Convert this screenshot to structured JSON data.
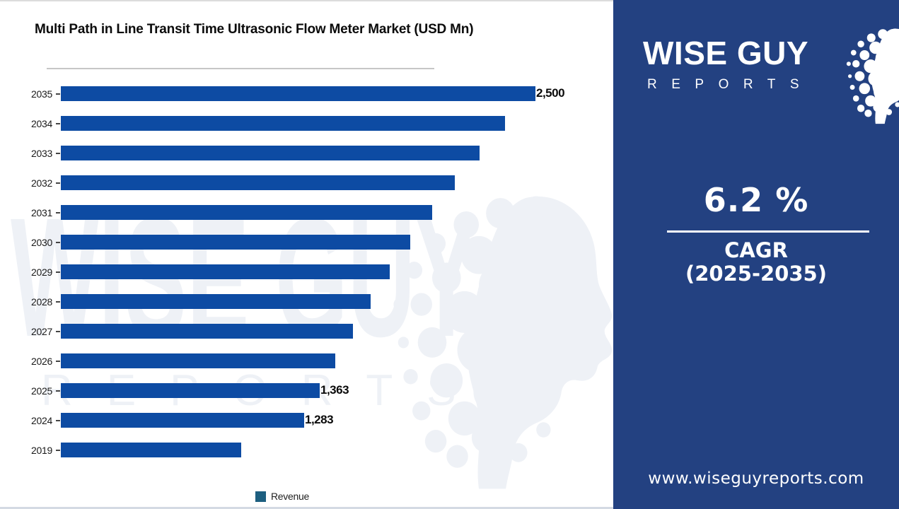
{
  "chart_data": {
    "type": "bar",
    "orientation": "horizontal",
    "title": "Multi Path in Line Transit Time Ultrasonic Flow Meter Market (USD Mn)",
    "xlabel": "",
    "ylabel": "",
    "xlim": [
      0,
      2500
    ],
    "grid": false,
    "legend_position": "bottom-center",
    "categories": [
      "2035",
      "2034",
      "2033",
      "2032",
      "2031",
      "2030",
      "2029",
      "2028",
      "2027",
      "2026",
      "2025",
      "2024",
      "2019"
    ],
    "series": [
      {
        "name": "Revenue",
        "values": [
          2500,
          2341,
          2204,
          2076,
          1955,
          1841,
          1733,
          1632,
          1537,
          1447,
          1363,
          1283,
          950
        ]
      }
    ],
    "data_labels": [
      "2,500",
      "",
      "",
      "",
      "",
      "",
      "",
      "",
      "",
      "",
      "1,363",
      "1,283",
      ""
    ]
  },
  "watermark": {
    "line1": "WISE GUY",
    "line2": "REPORTS"
  },
  "panel": {
    "logo_title": "WISE GUY",
    "logo_subtitle": "REPORTS",
    "cagr_value": "6.2 %",
    "cagr_line1": "CAGR",
    "cagr_line2": "(2025-2035)",
    "website": "www.wiseguyreports.com"
  },
  "colors": {
    "bar": "#0D4BA3",
    "panel_bg": "#234181",
    "legend_swatch": "#1D5F80",
    "watermark": "#EEF1F6",
    "title_text": "#0B0B0B",
    "divider": "#C6C6C6",
    "bottom_line": "#D4DAE3"
  }
}
